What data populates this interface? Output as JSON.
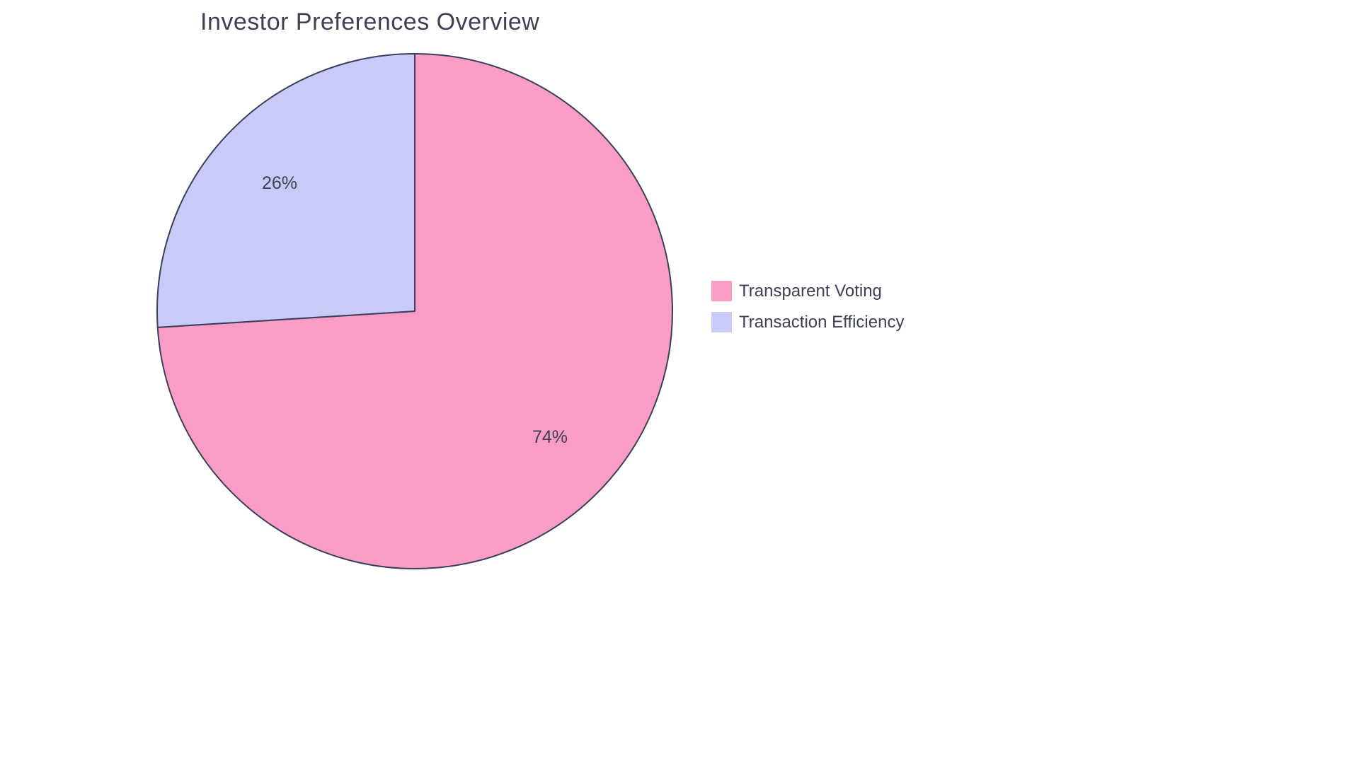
{
  "chart_data": {
    "type": "pie",
    "title": "Investor Preferences Overview",
    "labels": [
      "Transparent Voting",
      "Transaction Efficiency"
    ],
    "values": [
      74,
      26
    ],
    "slice_label_texts": [
      "74%",
      "26%"
    ],
    "colors": [
      "#F99DC6",
      "#C8CAF7"
    ],
    "stroke_color": "#3A3F5C",
    "text_color": "#3E4155",
    "legend_position": "right",
    "start_angle_deg": -90,
    "direction": "clockwise"
  }
}
